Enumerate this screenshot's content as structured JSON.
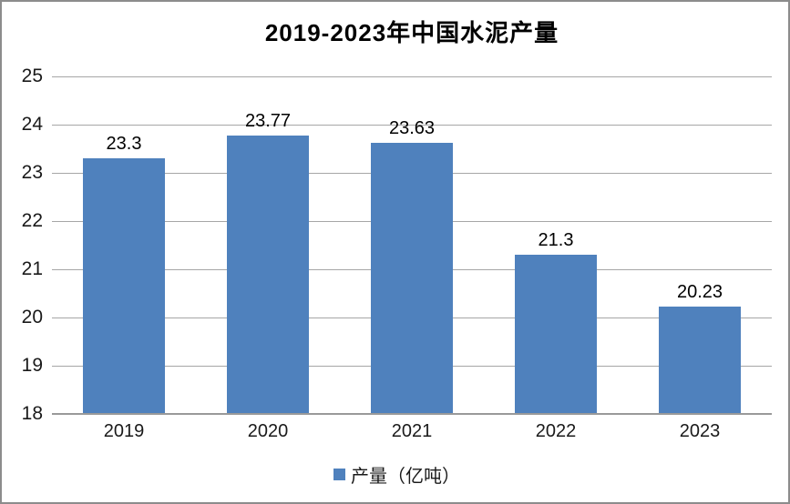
{
  "chart_data": {
    "type": "bar",
    "title": "2019-2023年中国水泥产量",
    "categories": [
      "2019",
      "2020",
      "2021",
      "2022",
      "2023"
    ],
    "values": [
      23.3,
      23.77,
      23.63,
      21.3,
      20.23
    ],
    "value_labels": [
      "23.3",
      "23.77",
      "23.63",
      "21.3",
      "20.23"
    ],
    "series_name": "产量（亿吨）",
    "legend": [
      "产量（亿吨）"
    ],
    "legend_position": "bottom",
    "ylim": [
      18,
      25
    ],
    "yticks": [
      18,
      19,
      20,
      21,
      22,
      23,
      24,
      25
    ],
    "grid": true,
    "xlabel": "",
    "ylabel": "",
    "colors": {
      "bar": "#4f81bd",
      "gridline": "#a6a6a6",
      "axis_line": "#999999",
      "text": "#000000",
      "frame_border": "#8c8c8c",
      "background": "#ffffff"
    }
  }
}
